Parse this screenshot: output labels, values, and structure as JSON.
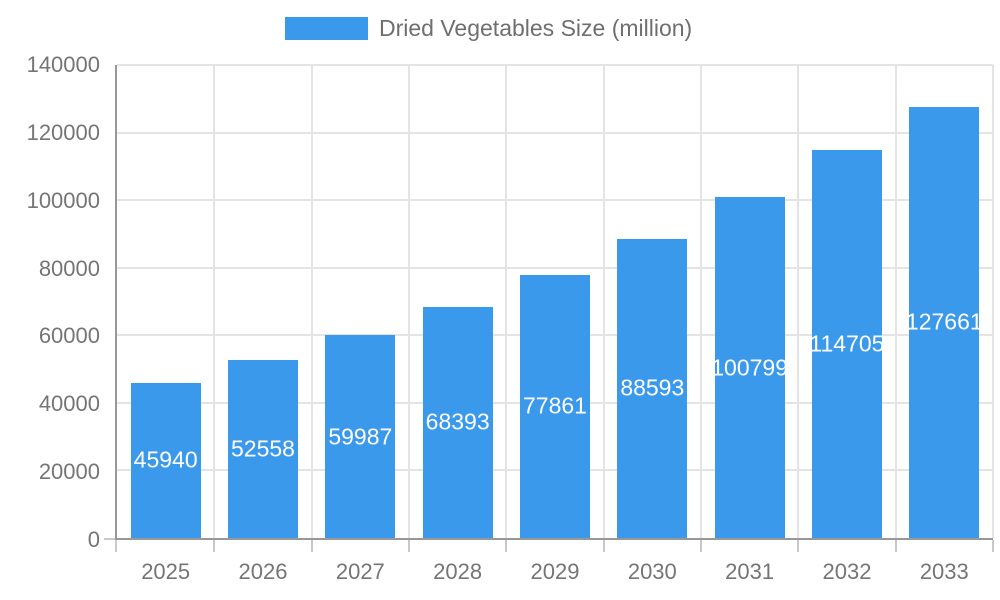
{
  "chart_data": {
    "type": "bar",
    "title": "Dried Vegetables Size (million)",
    "legend_entries": [
      "Dried Vegetables Size (million)"
    ],
    "legend_position": "top",
    "categories": [
      "2025",
      "2026",
      "2027",
      "2028",
      "2029",
      "2030",
      "2031",
      "2032",
      "2033"
    ],
    "series": [
      {
        "name": "Dried Vegetables Size (million)",
        "values": [
          45940,
          52558,
          59987,
          68393,
          77861,
          88593,
          100799,
          114705,
          127661
        ]
      }
    ],
    "value_labels": [
      "45940",
      "52558",
      "59987",
      "68393",
      "77861",
      "88593",
      "100799",
      "114705",
      "127661"
    ],
    "xlabel": "",
    "ylabel": "",
    "ylim": [
      0,
      140000
    ],
    "ytick_step": 20000,
    "ytick_labels": [
      "0",
      "20000",
      "40000",
      "60000",
      "80000",
      "100000",
      "120000",
      "140000"
    ],
    "grid": true,
    "colors": {
      "bar": "#3b99ec",
      "value_label": "#ffffff",
      "axis_line": "#989898",
      "gridline": "#e4e4e4",
      "tick_mark": "#c9c9c9",
      "axis_text": "#757575",
      "legend_text": "#6f6f6f",
      "background": "#ffffff"
    }
  }
}
